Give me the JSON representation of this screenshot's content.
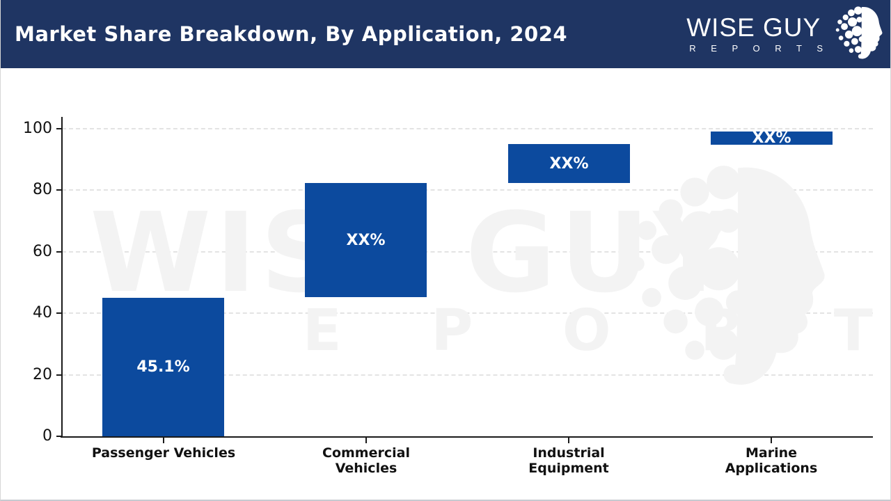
{
  "header": {
    "title": "Market Share Breakdown, By Application, 2024",
    "logo": {
      "brand": "WISE GUY",
      "subbrand": "R E P O R T S"
    }
  },
  "watermark": {
    "line1": "WISE GUY",
    "line2": "R E P O R T S"
  },
  "chart_data": {
    "type": "bar",
    "variant": "waterfall-range-bars",
    "title": "Market Share Breakdown, By Application, 2024",
    "categories": [
      "Passenger Vehicles",
      "Commercial Vehicles",
      "Industrial Equipment",
      "Marine Applications"
    ],
    "category_display_lines": [
      [
        "Passenger Vehicles"
      ],
      [
        "Commercial",
        "Vehicles"
      ],
      [
        "Industrial",
        "Equipment"
      ],
      [
        "Marine",
        "Applications"
      ]
    ],
    "bars": [
      {
        "category": "Passenger Vehicles",
        "start": 0,
        "end": 45.1,
        "label": "45.1%"
      },
      {
        "category": "Commercial Vehicles",
        "start": 45.1,
        "end": 82.3,
        "label": "XX%"
      },
      {
        "category": "Industrial Equipment",
        "start": 82.3,
        "end": 95.0,
        "label": "XX%"
      },
      {
        "category": "Marine Applications",
        "start": 95.0,
        "end": 99.2,
        "label": "XX%"
      }
    ],
    "yticks": [
      0,
      20,
      40,
      60,
      80,
      100
    ],
    "ylim": [
      0,
      104
    ],
    "xlabel": "",
    "ylabel": "",
    "grid": "horizontal-dashed",
    "legend_position": "none",
    "bar_color": "#0c4a9e",
    "bar_label_color": "#ffffff"
  },
  "colors": {
    "header_bg": "#1f3563",
    "bar": "#0c4a9e",
    "axis": "#1a1a1a",
    "gridline": "#e3e3e3",
    "watermark": "#f3f3f3"
  }
}
